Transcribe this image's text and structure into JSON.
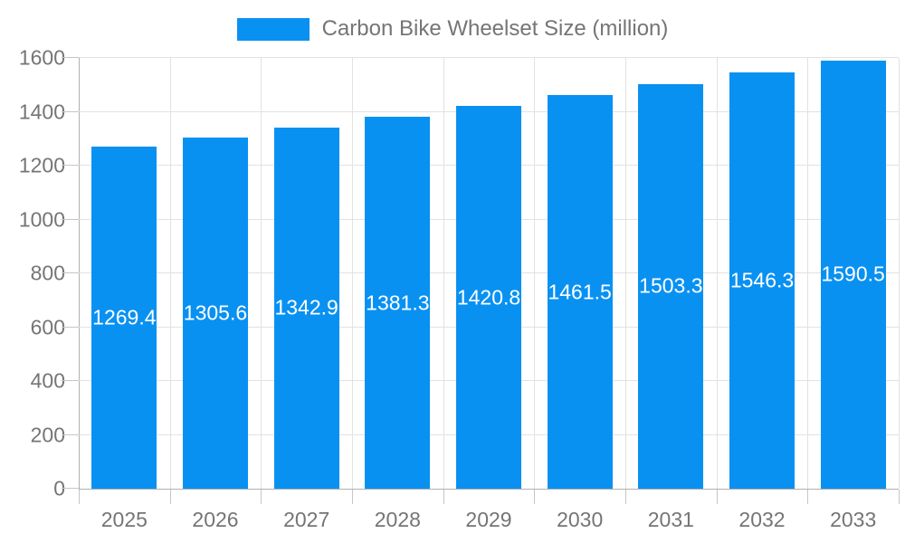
{
  "legend": {
    "label": "Carbon Bike Wheelset Size (million)"
  },
  "colors": {
    "bar": "#0991f2",
    "axis_label_text": "#757575",
    "bar_label_text": "#ffffff",
    "gridline": "#e2e2e2",
    "axis_line": "#b0b0b0",
    "tick": "#c6c6c6",
    "background": "#ffffff"
  },
  "chart_data": {
    "type": "bar",
    "title": "Carbon Bike Wheelset Size (million)",
    "categories": [
      "2025",
      "2026",
      "2027",
      "2028",
      "2029",
      "2030",
      "2031",
      "2032",
      "2033"
    ],
    "series": [
      {
        "name": "Carbon Bike Wheelset Size (million)",
        "values": [
          1269.4,
          1305.6,
          1342.9,
          1381.3,
          1420.8,
          1461.5,
          1503.3,
          1546.3,
          1590.5
        ]
      }
    ],
    "bar_labels": [
      1269.4,
      1305.6,
      1342.9,
      1381.3,
      1420.8,
      1461.5,
      1503.3,
      1546.3,
      1590.5
    ],
    "xlabel": "",
    "ylabel": "",
    "ylim": [
      0,
      1600
    ],
    "yticks": [
      0,
      200,
      400,
      600,
      800,
      1000,
      1200,
      1400,
      1600
    ],
    "grid": true,
    "legend_position": "top"
  }
}
